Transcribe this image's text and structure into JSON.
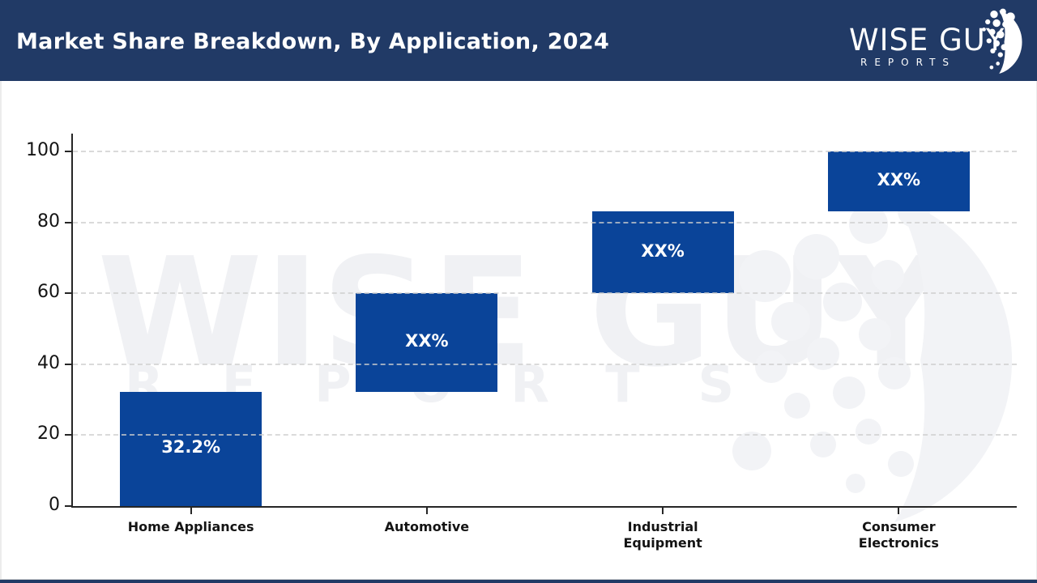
{
  "header": {
    "title": "Market Share Breakdown, By Application, 2024",
    "logo": {
      "name_line": "WISE GUY",
      "sub_line": "REPORTS"
    }
  },
  "watermark": {
    "name_line": "WISE GUY",
    "sub_line": "REPORTS"
  },
  "colors": {
    "header_bg": "#213A66",
    "bar": "#0A4499",
    "axis": "#262626",
    "gridline": "#d9d9d9",
    "title_text": "#ffffff",
    "bar_label_text": "#ffffff",
    "watermark": "#f0f1f4"
  },
  "chart_data": {
    "type": "bar",
    "subtype": "waterfall",
    "title": "Market Share Breakdown, By Application, 2024",
    "categories": [
      "Home Appliances",
      "Automotive",
      "Industrial Equipment",
      "Consumer Electronics"
    ],
    "category_label_lines": [
      [
        "Home Appliances"
      ],
      [
        "Automotive"
      ],
      [
        "Industrial",
        "Equipment"
      ],
      [
        "Consumer",
        "Electronics"
      ]
    ],
    "segments": [
      {
        "category": "Home Appliances",
        "start": 0,
        "end": 32.2,
        "label": "32.2%"
      },
      {
        "category": "Automotive",
        "start": 32.2,
        "end": 60,
        "label": "XX%"
      },
      {
        "category": "Industrial Equipment",
        "start": 60,
        "end": 83,
        "label": "XX%"
      },
      {
        "category": "Consumer Electronics",
        "start": 83,
        "end": 100,
        "label": "XX%"
      }
    ],
    "ylim": [
      0,
      100
    ],
    "yticks": [
      0,
      20,
      40,
      60,
      80,
      100
    ],
    "grid": "horizontal-dashed",
    "legend": "none"
  }
}
